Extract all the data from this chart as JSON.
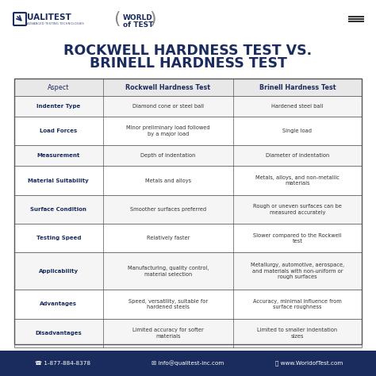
{
  "title_line1": "ROCKWELL HARDNESS TEST VS.",
  "title_line2": "BRINELL HARDNESS TEST",
  "title_color": "#1a2b5e",
  "bg_color": "#ffffff",
  "header_row": [
    "Aspect",
    "Rockwell Hardness Test",
    "Brinell Hardness Test"
  ],
  "rows": [
    [
      "Indenter Type",
      "Diamond cone or steel ball",
      "Hardened steel ball"
    ],
    [
      "Load Forces",
      "Minor preliminary load followed\nby a major load",
      "Single load"
    ],
    [
      "Measurement",
      "Depth of indentation",
      "Diameter of indentation"
    ],
    [
      "Material Suitability",
      "Metals and alloys",
      "Metals, alloys, and non-metallic\nmaterials"
    ],
    [
      "Surface Condition",
      "Smoother surfaces preferred",
      "Rough or uneven surfaces can be\nmeasured accurately"
    ],
    [
      "Testing Speed",
      "Relatively faster",
      "Slower compared to the Rockwell\ntest"
    ],
    [
      "Applicability",
      "Manufacturing, quality control,\nmaterial selection",
      "Metallurgy, automotive, aerospace,\nand materials with non-uniform or\nrough surfaces"
    ],
    [
      "Advantages",
      "Speed, versatility, suitable for\nhardened steels",
      "Accuracy, minimal influence from\nsurface roughness"
    ],
    [
      "Disadvantages",
      "Limited accuracy for softer\nmaterials",
      "Limited to smaller indentation\nsizes"
    ]
  ],
  "footer_bg": "#1a2b5e",
  "footer_text_color": "#ffffff",
  "footer_items": [
    "☎ 1-877-884-8378",
    "✉ info@qualitest-inc.com",
    "🌐 www.WorldofTest.com"
  ],
  "table_border_color": "#555555",
  "header_bg": "#f0f0f0",
  "col1_bg": "#f5f5f5",
  "row_bg": "#ffffff",
  "alt_row_bg": "#f9f9f9",
  "logo_color": "#1a2b5e",
  "header_text_color": "#1a2b5e",
  "cell_text_color": "#333333",
  "aspect_text_color": "#1a2b5e"
}
